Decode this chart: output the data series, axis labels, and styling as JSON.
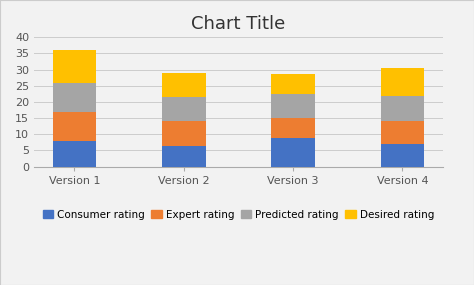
{
  "categories": [
    "Version 1",
    "Version 2",
    "Version 3",
    "Version 4"
  ],
  "series": {
    "Consumer rating": [
      8,
      6.5,
      9,
      7
    ],
    "Expert rating": [
      9,
      7.5,
      6,
      7
    ],
    "Predicted rating": [
      9,
      7.5,
      7.5,
      8
    ],
    "Desired rating": [
      10,
      7.5,
      6,
      8.5
    ]
  },
  "colors": {
    "Consumer rating": "#4472C4",
    "Expert rating": "#ED7D31",
    "Predicted rating": "#A5A5A5",
    "Desired rating": "#FFC000"
  },
  "title": "Chart Title",
  "ylim": [
    0,
    40
  ],
  "yticks": [
    0,
    5,
    10,
    15,
    20,
    25,
    30,
    35,
    40
  ],
  "fig_background_color": "#F2F2F2",
  "plot_area_color": "#F2F2F2",
  "title_fontsize": 13,
  "legend_fontsize": 7.5,
  "tick_fontsize": 8,
  "bar_width": 0.4
}
